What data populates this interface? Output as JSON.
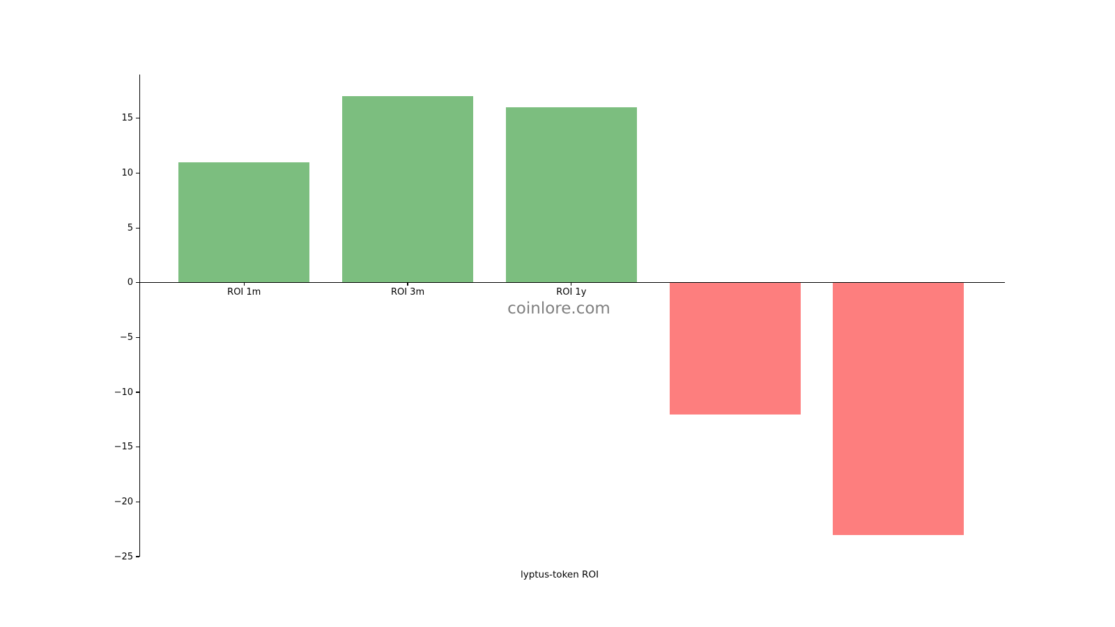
{
  "chart_data": {
    "type": "bar",
    "title": "lyptus-token ROI",
    "watermark": "coinlore.com",
    "categories": [
      "ROI 1m",
      "ROI 3m",
      "ROI 1y",
      "",
      ""
    ],
    "values": [
      11,
      17,
      16,
      -12,
      -23
    ],
    "positive_color": "#7cbe7f",
    "negative_color": "#fd7e7e",
    "axis_color": "#000000",
    "text_color": "#000000",
    "watermark_color": "#808080",
    "yticks": [
      15,
      10,
      5,
      0,
      -5,
      -10,
      -15,
      -20,
      -25
    ],
    "ytick_labels": [
      "15",
      "10",
      "5",
      "0",
      "−5",
      "−10",
      "−15",
      "−20",
      "−25"
    ],
    "ylim": [
      -25,
      19
    ],
    "xlim": [
      -0.64,
      4.65
    ],
    "bar_width_fraction": 0.8,
    "grid": false,
    "legend_position": "none",
    "xlabel": "",
    "ylabel": ""
  }
}
